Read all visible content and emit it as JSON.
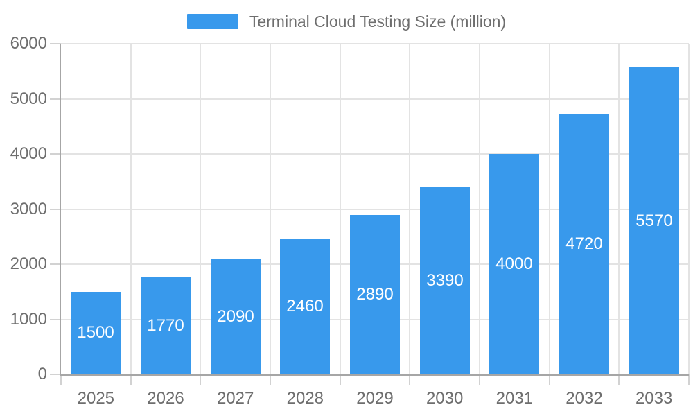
{
  "chart_data": {
    "type": "bar",
    "title": "Terminal Cloud Testing Size (million)",
    "categories": [
      "2025",
      "2026",
      "2027",
      "2028",
      "2029",
      "2030",
      "2031",
      "2032",
      "2033"
    ],
    "values": [
      1500,
      1770,
      2090,
      2460,
      2890,
      3390,
      4000,
      4720,
      5570
    ],
    "value_labels": [
      "1500",
      "1770",
      "2090",
      "2460",
      "2890",
      "3390",
      "4000",
      "4720",
      "5570"
    ],
    "xlabel": "",
    "ylabel": "",
    "ylim": [
      0,
      6000
    ],
    "yticks": [
      0,
      1000,
      2000,
      3000,
      4000,
      5000,
      6000
    ],
    "ytick_labels": [
      "0",
      "1000",
      "2000",
      "3000",
      "4000",
      "5000",
      "6000"
    ],
    "grid": true,
    "legend_position": "top",
    "value_labels_position": "center-inside",
    "colors": {
      "bar": "#3899EC",
      "bar_value_label": "#FFFFFF",
      "tick_label": "#6E6E6E",
      "legend_label": "#6E6E6E",
      "grid": "#E3E3E3",
      "tick_mark": "#D2D2D2",
      "axis": "#A6A6A6",
      "background": "#FFFFFF"
    }
  }
}
